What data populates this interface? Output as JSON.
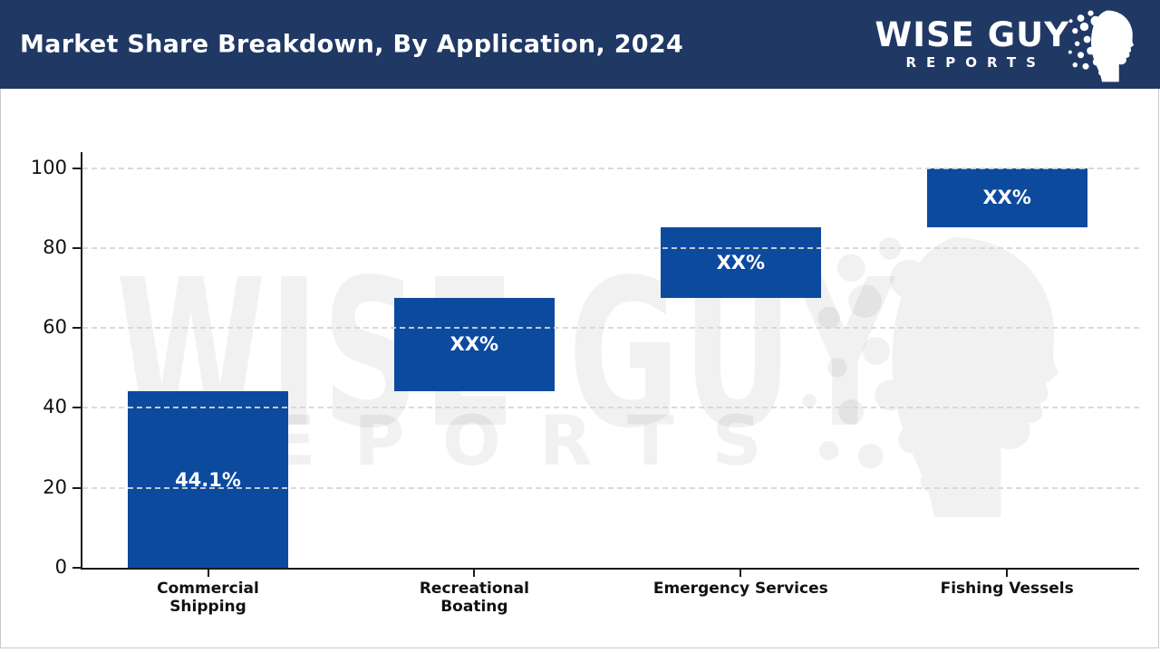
{
  "header": {
    "title": "Market Share Breakdown, By Application, 2024",
    "logo": {
      "line1": "WISE GUY",
      "line2": "REPORTS"
    }
  },
  "watermark": {
    "line1": "WISE GUY",
    "line2": "REPORTS"
  },
  "chart_data": {
    "type": "bar",
    "subtype": "waterfall",
    "title": "Market Share Breakdown, By Application, 2024",
    "xlabel": "",
    "ylabel": "",
    "categories": [
      "Commercial\nShipping",
      "Recreational\nBoating",
      "Emergency Services",
      "Fishing Vessels"
    ],
    "segments": [
      {
        "category": "Commercial Shipping",
        "start": 0,
        "end": 44.1,
        "label": "44.1%"
      },
      {
        "category": "Recreational Boating",
        "start": 44.1,
        "end": 67.6,
        "label": "XX%"
      },
      {
        "category": "Emergency Services",
        "start": 67.6,
        "end": 85.2,
        "label": "XX%"
      },
      {
        "category": "Fishing Vessels",
        "start": 85.2,
        "end": 100,
        "label": "XX%"
      }
    ],
    "yticks": [
      0,
      20,
      40,
      60,
      80,
      100
    ],
    "ylim": [
      0,
      104
    ],
    "grid": "horizontal-dashed",
    "legend": "none",
    "colors": {
      "bar": "#0c4a9e",
      "header_bg": "#203864",
      "bar_label_text": "#ffffff",
      "axis": "#1a1a1a",
      "gridline": "#d6d6d6",
      "watermark": "#f2f2f2"
    }
  }
}
